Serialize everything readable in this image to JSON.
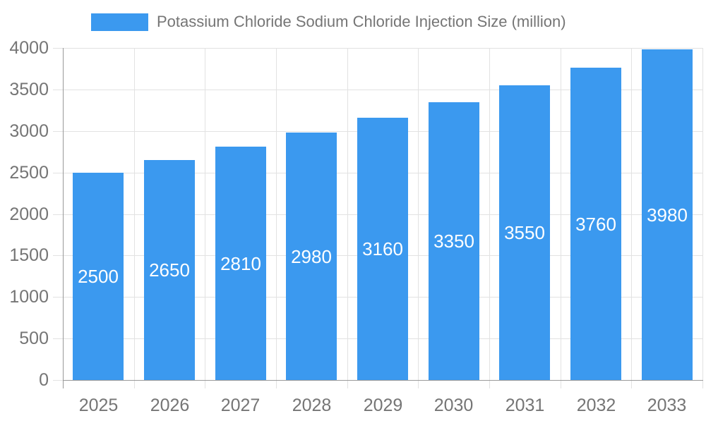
{
  "legend": {
    "label": "Potassium Chloride Sodium Chloride Injection Size (million)"
  },
  "colors": {
    "bar": "#3B99EF",
    "bar_label": "#FFFFFF",
    "axis_line": "#999999",
    "grid_line": "#E2E2E2",
    "axis_text": "#757575",
    "background": "#FFFFFF"
  },
  "chart_data": {
    "type": "bar",
    "title": "Potassium Chloride Sodium Chloride Injection Size (million)",
    "categories": [
      "2025",
      "2026",
      "2027",
      "2028",
      "2029",
      "2030",
      "2031",
      "2032",
      "2033"
    ],
    "values": [
      2500,
      2650,
      2810,
      2980,
      3160,
      3350,
      3550,
      3760,
      3980
    ],
    "xlabel": "",
    "ylabel": "",
    "ylim": [
      0,
      4000
    ],
    "yticks": [
      0,
      500,
      1000,
      1500,
      2000,
      2500,
      3000,
      3500,
      4000
    ],
    "grid": true,
    "legend_position": "top",
    "value_labels": "inside-center"
  }
}
